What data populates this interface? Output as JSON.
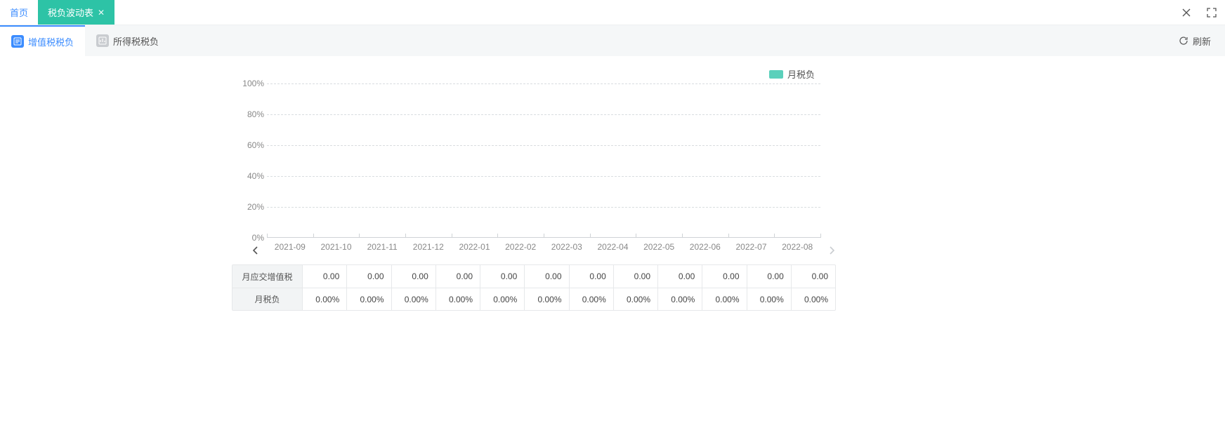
{
  "topTabs": {
    "home": "首页",
    "active": "税负波动表"
  },
  "subTabs": {
    "vat": "增值税税负",
    "income": "所得税税负"
  },
  "actions": {
    "refresh": "刷新"
  },
  "chart": {
    "type": "bar",
    "legend_label": "月税负",
    "legend_color": "#5bd0bb",
    "categories": [
      "2021-09",
      "2021-10",
      "2021-11",
      "2021-12",
      "2022-01",
      "2022-02",
      "2022-03",
      "2022-04",
      "2022-05",
      "2022-06",
      "2022-07",
      "2022-08"
    ],
    "values": [
      0,
      0,
      0,
      0,
      0,
      0,
      0,
      0,
      0,
      0,
      0,
      0
    ],
    "y_ticks": [
      "0%",
      "20%",
      "40%",
      "60%",
      "80%",
      "100%"
    ],
    "ylim": [
      0,
      100
    ],
    "grid_color": "#d9dde0",
    "axis_color": "#cfd3d6",
    "label_color": "#888888",
    "background_color": "#ffffff"
  },
  "table": {
    "rows": [
      {
        "label": "月应交增值税",
        "cells": [
          "0.00",
          "0.00",
          "0.00",
          "0.00",
          "0.00",
          "0.00",
          "0.00",
          "0.00",
          "0.00",
          "0.00",
          "0.00",
          "0.00"
        ]
      },
      {
        "label": "月税负",
        "cells": [
          "0.00%",
          "0.00%",
          "0.00%",
          "0.00%",
          "0.00%",
          "0.00%",
          "0.00%",
          "0.00%",
          "0.00%",
          "0.00%",
          "0.00%",
          "0.00%"
        ]
      }
    ]
  },
  "colors": {
    "teal": "#2dc3a6",
    "blue": "#3b8cff"
  }
}
